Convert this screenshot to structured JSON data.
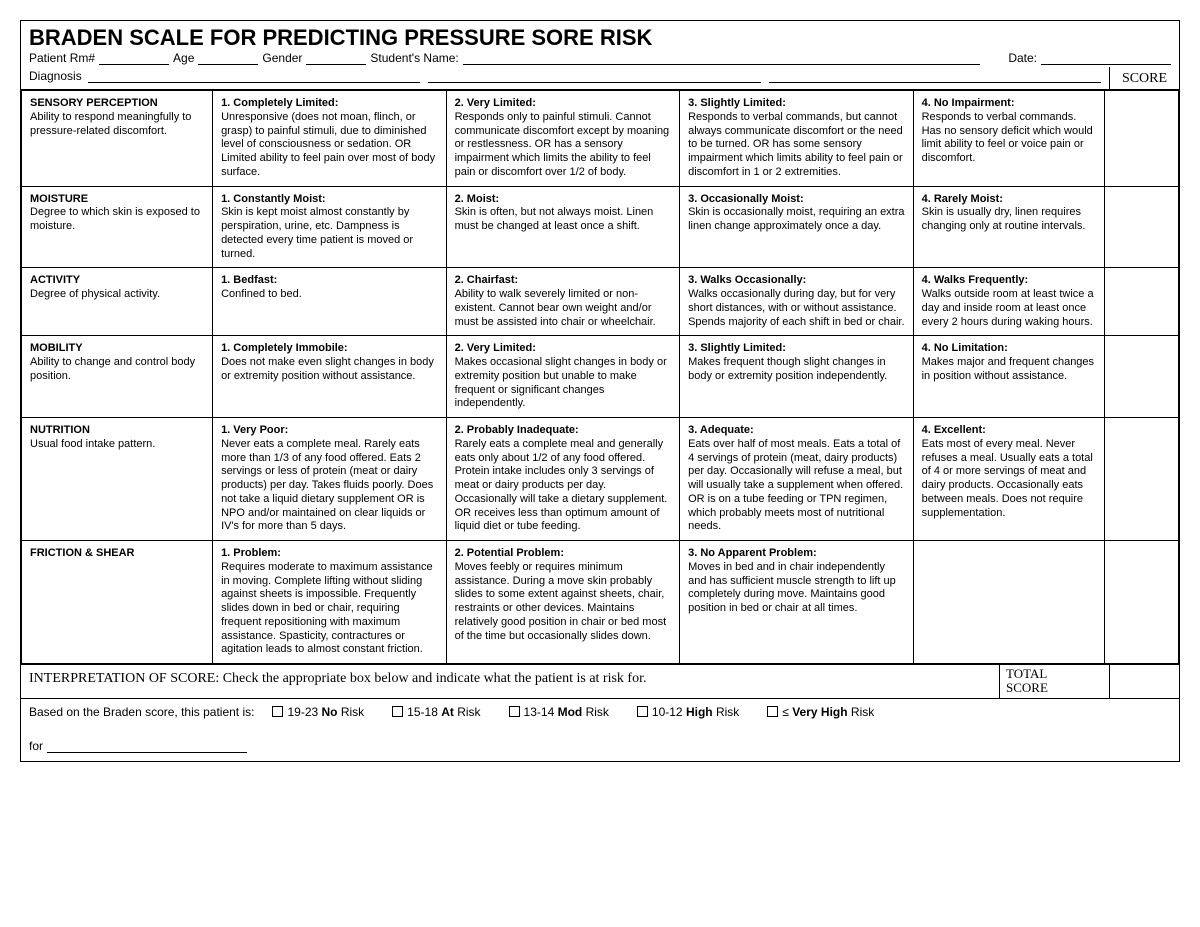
{
  "title": "BRADEN SCALE FOR PREDICTING PRESSURE SORE RISK",
  "header": {
    "patient_rm": "Patient Rm#",
    "age": "Age",
    "gender": "Gender",
    "student": "Student's Name:",
    "date": "Date:",
    "diagnosis": "Diagnosis"
  },
  "score_header": "SCORE",
  "rows": [
    {
      "category": "SENSORY PERCEPTION",
      "subtext": "Ability to respond meaningfully to pressure-related discomfort.",
      "options": [
        {
          "title": "1. Completely Limited:",
          "text": "Unresponsive (does not moan, flinch, or grasp) to painful stimuli, due to diminished level of consciousness or sedation. OR Limited ability to feel pain over most of body surface."
        },
        {
          "title": "2. Very Limited:",
          "text": "Responds only to painful stimuli. Cannot communicate discomfort except by moaning or restlessness. OR has a sensory impairment which limits the ability to feel pain or discomfort over 1/2 of body."
        },
        {
          "title": "3. Slightly Limited:",
          "text": "Responds to verbal commands, but cannot always communicate discomfort or the need to be turned. OR has some sensory impairment which limits ability to feel pain or discomfort in 1 or 2 extremities."
        },
        {
          "title": "4. No Impairment:",
          "text": "Responds to verbal commands. Has no sensory deficit which would limit ability to feel or voice pain or discomfort."
        }
      ]
    },
    {
      "category": "MOISTURE",
      "subtext": "Degree to which skin is exposed to moisture.",
      "options": [
        {
          "title": "1. Constantly Moist:",
          "text": "Skin is kept moist almost constantly by perspiration, urine, etc. Dampness is detected every time patient is moved or turned."
        },
        {
          "title": "2. Moist:",
          "text": "Skin is often, but not always moist. Linen must be changed at least once a shift."
        },
        {
          "title": "3. Occasionally Moist:",
          "text": "Skin is occasionally moist, requiring an extra linen change approximately once a day."
        },
        {
          "title": "4. Rarely Moist:",
          "text": "Skin is usually dry, linen requires changing only at routine intervals."
        }
      ]
    },
    {
      "category": "ACTIVITY",
      "subtext": "Degree of physical activity.",
      "options": [
        {
          "title": "1. Bedfast:",
          "text": "Confined to bed."
        },
        {
          "title": "2. Chairfast:",
          "text": "Ability to walk severely limited or non-existent. Cannot bear own weight and/or must be assisted into chair or wheelchair."
        },
        {
          "title": "3. Walks Occasionally:",
          "text": "Walks occasionally during day, but for very short distances, with or without assistance. Spends majority of each shift in bed or chair."
        },
        {
          "title": "4. Walks Frequently:",
          "text": "Walks outside room at least twice a day and inside room at least once every 2 hours during waking hours."
        }
      ]
    },
    {
      "category": "MOBILITY",
      "subtext": "Ability to change and control body position.",
      "options": [
        {
          "title": "1. Completely Immobile:",
          "text": "Does not make even slight changes in body or extremity position without assistance."
        },
        {
          "title": "2. Very Limited:",
          "text": "Makes occasional slight changes in body or extremity position but unable to make frequent or significant changes independently."
        },
        {
          "title": "3. Slightly Limited:",
          "text": "Makes frequent though slight changes in body or extremity position independently."
        },
        {
          "title": "4. No Limitation:",
          "text": "Makes major and frequent changes in position without assistance."
        }
      ]
    },
    {
      "category": "NUTRITION",
      "subtext": "Usual food intake pattern.",
      "options": [
        {
          "title": "1. Very Poor:",
          "text": "Never eats a complete meal. Rarely eats more than 1/3 of any food offered. Eats 2 servings or less of protein (meat or dairy products) per day. Takes fluids poorly. Does not take a liquid dietary supplement OR is NPO and/or maintained on clear liquids or IV's for more than 5 days."
        },
        {
          "title": "2. Probably Inadequate:",
          "text": "Rarely eats a complete meal and generally eats only about 1/2 of any food offered. Protein intake includes only 3 servings of meat or dairy products per day. Occasionally will take a dietary supplement. OR receives less than optimum amount of liquid diet or tube feeding."
        },
        {
          "title": "3. Adequate:",
          "text": "Eats over half of most meals. Eats a total of 4 servings of protein (meat, dairy products) per day. Occasionally will refuse a meal, but will usually take a supplement when offered. OR is on a tube feeding or TPN regimen, which probably meets most of nutritional needs."
        },
        {
          "title": "4. Excellent:",
          "text": "Eats most of every meal. Never refuses a meal. Usually eats a total of 4 or more servings of meat and dairy products. Occasionally eats between meals. Does not require supplementation."
        }
      ]
    },
    {
      "category": "FRICTION & SHEAR",
      "subtext": "",
      "options": [
        {
          "title": "1. Problem:",
          "text": "Requires moderate to maximum assistance in moving. Complete lifting without sliding against sheets is impossible. Frequently slides down in bed or chair, requiring frequent repositioning with maximum assistance. Spasticity, contractures or agitation leads to almost constant friction."
        },
        {
          "title": "2. Potential Problem:",
          "text": "Moves feebly or requires minimum assistance. During a move skin probably slides to some extent against sheets, chair, restraints or other devices. Maintains relatively good position in chair or bed most of the time but occasionally slides down."
        },
        {
          "title": "3. No Apparent Problem:",
          "text": "Moves in bed and in chair independently and has sufficient muscle strength to lift up completely during move. Maintains good position in bed or chair at all times."
        },
        {
          "title": "",
          "text": ""
        }
      ]
    }
  ],
  "interpretation": "INTERPRETATION OF SCORE:  Check the appropriate box below and indicate what the patient is at risk for.",
  "total_label": "TOTAL SCORE",
  "risk_intro": "Based on the Braden score, this patient is:",
  "risks": [
    {
      "range": "19-23",
      "label": "No",
      "suffix": "Risk"
    },
    {
      "range": "15-18",
      "label": "At",
      "suffix": "Risk"
    },
    {
      "range": "13-14",
      "label": "Mod",
      "suffix": "Risk"
    },
    {
      "range": "10-12",
      "label": "High",
      "suffix": "Risk"
    },
    {
      "range": "≤",
      "label": "Very High",
      "suffix": "Risk"
    }
  ],
  "for_label": "for"
}
